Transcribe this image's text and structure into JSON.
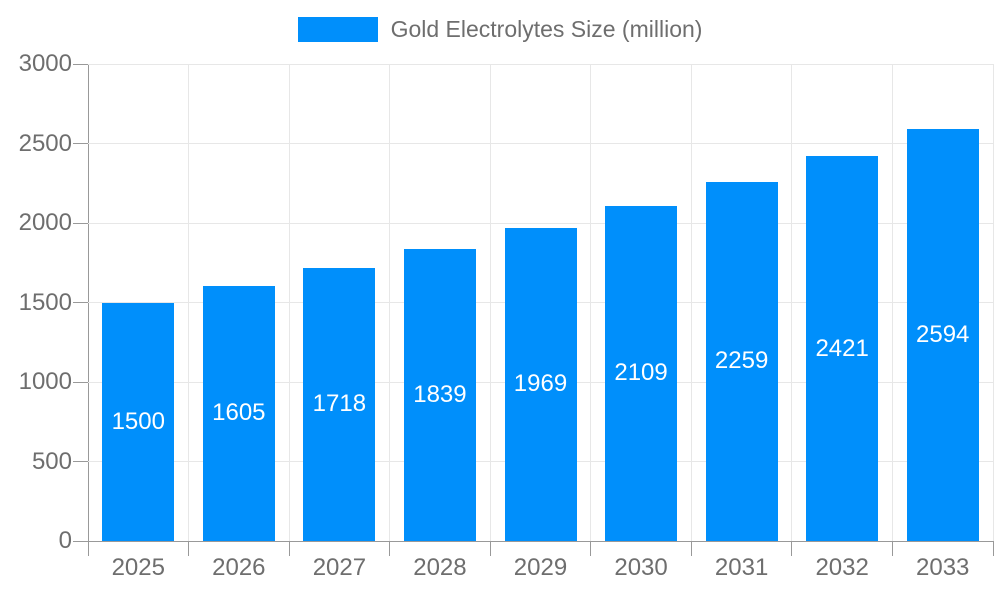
{
  "legend": {
    "label": "Gold Electrolytes Size (million)"
  },
  "chart_data": {
    "type": "bar",
    "title": "Gold Electrolytes Size (million)",
    "categories": [
      "2025",
      "2026",
      "2027",
      "2028",
      "2029",
      "2030",
      "2031",
      "2032",
      "2033"
    ],
    "values": [
      1500,
      1605,
      1718,
      1839,
      1969,
      2109,
      2259,
      2421,
      2594
    ],
    "series": [
      {
        "name": "Gold Electrolytes Size (million)",
        "values": [
          1500,
          1605,
          1718,
          1839,
          1969,
          2109,
          2259,
          2421,
          2594
        ]
      }
    ],
    "data_labels": [
      "1500",
      "1605",
      "1718",
      "1839",
      "1969",
      "2109",
      "2259",
      "2421",
      "2594"
    ],
    "xlabel": "",
    "ylabel": "",
    "ylim": [
      0,
      3000
    ],
    "y_ticks": [
      0,
      500,
      1000,
      1500,
      2000,
      2500,
      3000
    ],
    "grid": true,
    "legend_position": "top-center",
    "bar_color": "#008FFB",
    "bar_label_color": "#FFFFFF",
    "axis_text_color": "#6E6E6E",
    "grid_color": "#E7E7E7",
    "axis_line_color": "#999999"
  }
}
